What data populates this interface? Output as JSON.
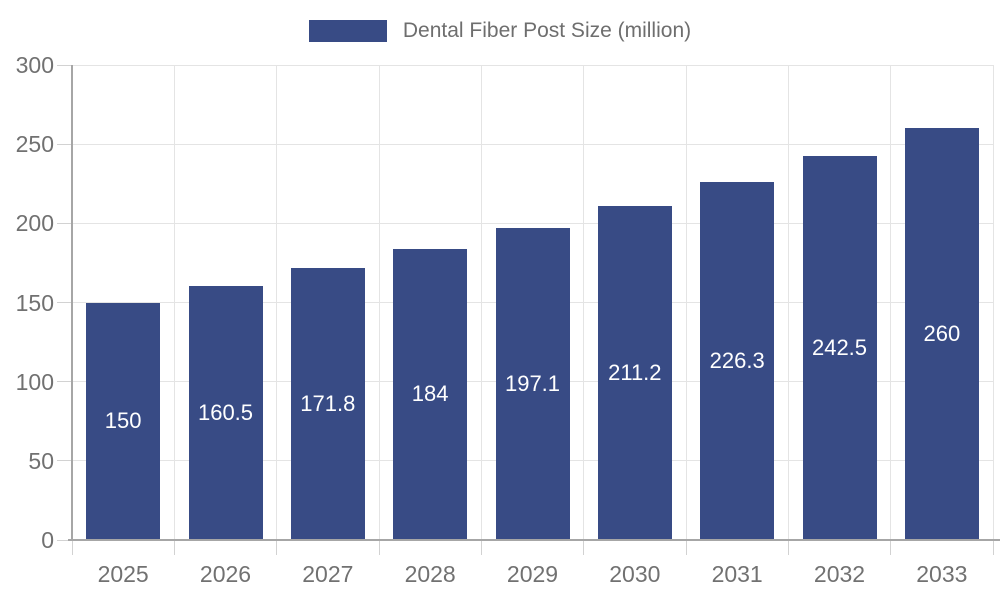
{
  "legend": {
    "label": "Dental Fiber Post Size (million)"
  },
  "colors": {
    "background": "#FFFFFF",
    "bar": "#384B85",
    "axis_line": "#A6A6A6",
    "grid_line": "#E4E4E4",
    "tick_line": "#D2D2D2",
    "axis_label": "#717171",
    "legend_label": "#6E6E6E",
    "bar_label": "#FFFFFF"
  },
  "chart_data": {
    "type": "bar",
    "title": "Dental Fiber Post Size (million)",
    "categories": [
      "2025",
      "2026",
      "2027",
      "2028",
      "2029",
      "2030",
      "2031",
      "2032",
      "2033"
    ],
    "series": [
      {
        "name": "Dental Fiber Post Size (million)",
        "values": [
          150,
          160.5,
          171.8,
          184,
          197.1,
          211.2,
          226.3,
          242.5,
          260
        ],
        "labels": [
          "150",
          "160.5",
          "171.8",
          "184",
          "197.1",
          "211.2",
          "226.3",
          "242.5",
          "260"
        ]
      }
    ],
    "xlabel": "",
    "ylabel": "",
    "ylim": [
      0,
      300
    ],
    "yticks": [
      0,
      50,
      100,
      150,
      200,
      250,
      300
    ],
    "grid": true,
    "legend_position": "top-center",
    "value_label_position": "inside-middle"
  }
}
